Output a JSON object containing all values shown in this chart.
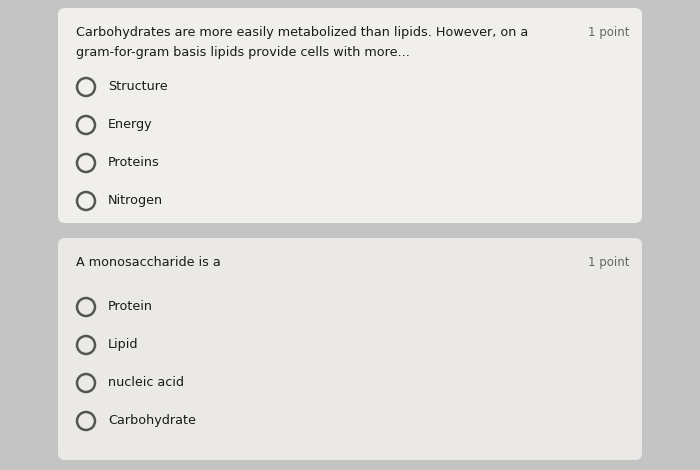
{
  "bg_color": "#c4c4c4",
  "card1_color": "#f0efec",
  "card2_color": "#eae9e6",
  "text_color": "#1a1a1a",
  "point_color": "#666666",
  "circle_color": "#555555",
  "q1_line1": "Carbohydrates are more easily metabolized than lipids. However, on a",
  "q1_line2": "gram-for-gram basis lipids provide cells with more...",
  "q1_point": "1 point",
  "q1_options": [
    "Structure",
    "Energy",
    "Proteins",
    "Nitrogen"
  ],
  "q2_question": "A monosaccharide is a",
  "q2_point": "1 point",
  "q2_options": [
    "Protein",
    "Lipid",
    "nucleic acid",
    "Carbohydrate"
  ],
  "fig_w": 7.0,
  "fig_h": 4.7,
  "dpi": 100
}
